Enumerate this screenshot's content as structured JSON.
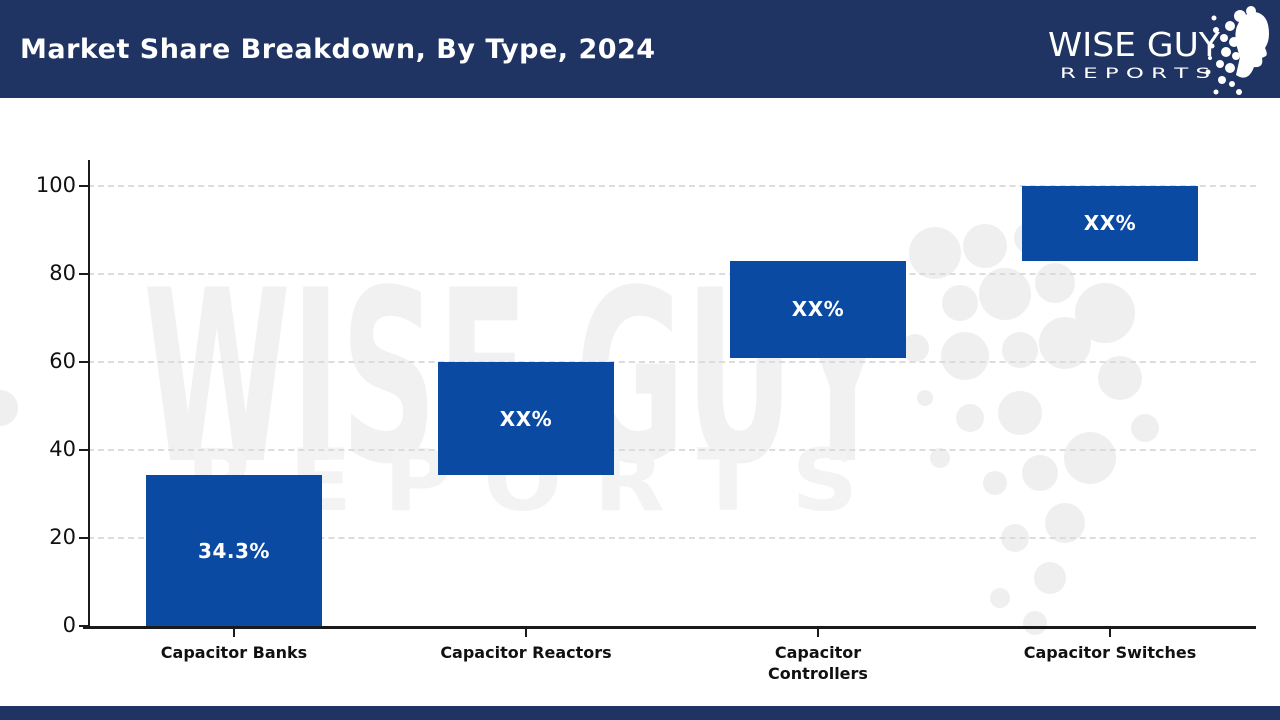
{
  "header": {
    "title": "Market Share Breakdown, By Type, 2024",
    "logo": {
      "line1": "WISE GUY",
      "line2": "R E P O R T S"
    }
  },
  "watermark": {
    "line1": "WISE GUY",
    "line2": "R E P O R T S"
  },
  "colors": {
    "header_bg": "#1f3463",
    "footer_bg": "#1f3463",
    "bar": "#0b4aa2",
    "bar_label": "#ffffff",
    "grid": "#dcdcdc",
    "axis": "#1a1a1a",
    "watermark": "#f1f1f1"
  },
  "chart_data": {
    "type": "bar",
    "subtype": "floating-waterfall",
    "title": "Market Share Breakdown, By Type, 2024",
    "xlabel": "",
    "ylabel": "",
    "ylim": [
      0,
      106
    ],
    "yticks": [
      0,
      20,
      40,
      60,
      80,
      100
    ],
    "grid": "horizontal-dashed",
    "legend": "none",
    "categories": [
      "Capacitor Banks",
      "Capacitor Reactors",
      "Capacitor Controllers",
      "Capacitor Switches"
    ],
    "category_lines": [
      [
        "Capacitor Banks"
      ],
      [
        "Capacitor Reactors"
      ],
      [
        "Capacitor",
        "Controllers"
      ],
      [
        "Capacitor Switches"
      ]
    ],
    "segments": [
      {
        "category": "Capacitor Banks",
        "start": 0,
        "end": 34.3,
        "label": "34.3%"
      },
      {
        "category": "Capacitor Reactors",
        "start": 34.3,
        "end": 60,
        "label": "XX%"
      },
      {
        "category": "Capacitor Controllers",
        "start": 61,
        "end": 83,
        "label": "XX%"
      },
      {
        "category": "Capacitor Switches",
        "start": 83,
        "end": 100,
        "label": "XX%"
      }
    ]
  }
}
